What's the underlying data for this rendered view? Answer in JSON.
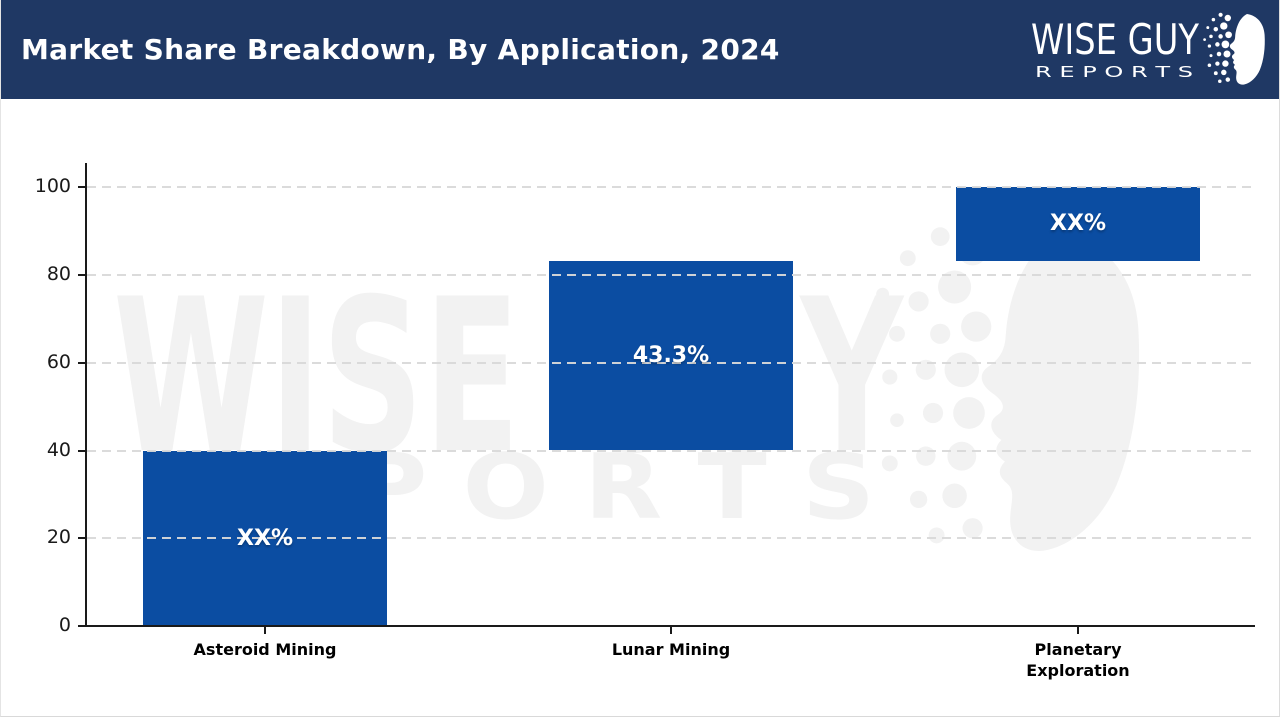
{
  "header": {
    "title": "Market Share Breakdown, By Application, 2024",
    "logo": {
      "line1": "WISE GUY",
      "line2": "R E P O R T S"
    }
  },
  "watermark": {
    "line1": "WISE GUY",
    "line2": "R E P O R T S"
  },
  "chart_data": {
    "type": "bar",
    "variant": "waterfall",
    "title": "Market Share Breakdown, By Application, 2024",
    "categories": [
      "Asteroid Mining",
      "Lunar Mining",
      "Planetary Exploration"
    ],
    "segments": [
      {
        "category": "Asteroid Mining",
        "start": 0,
        "end": 40,
        "label": "XX%"
      },
      {
        "category": "Lunar Mining",
        "start": 40,
        "end": 83.3,
        "label": "43.3%"
      },
      {
        "category": "Planetary Exploration",
        "start": 83.3,
        "end": 100,
        "label": "XX%"
      }
    ],
    "xlabel": "",
    "ylabel": "",
    "ylim": [
      0,
      100
    ],
    "yticks": [
      0,
      20,
      40,
      60,
      80,
      100
    ],
    "grid": "horizontal-dashed",
    "legend": "none",
    "colors": {
      "bar": "#0B4DA2",
      "bar_label": "#FFFFFF",
      "header_bg": "#1F3864",
      "grid_line": "#D9D9D9",
      "axis": "#1A1A1A",
      "watermark": "#F2F2F2"
    }
  }
}
